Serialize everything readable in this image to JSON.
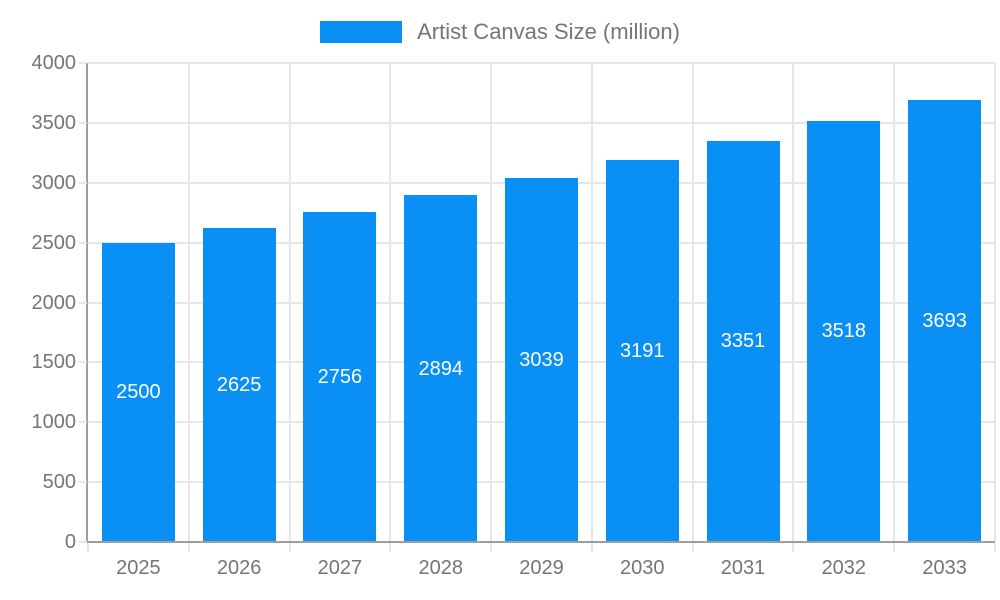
{
  "legend": {
    "label": "Artist Canvas Size (million)"
  },
  "colors": {
    "bar": "#0a8ff5",
    "text": "#757575",
    "grid": "#e6e6e6",
    "axis": "#9e9e9e",
    "bar_label": "#ffffff",
    "background": "#ffffff"
  },
  "chart_data": {
    "type": "bar",
    "categories": [
      "2025",
      "2026",
      "2027",
      "2028",
      "2029",
      "2030",
      "2031",
      "2032",
      "2033"
    ],
    "values": [
      2500,
      2625,
      2756,
      2894,
      3039,
      3191,
      3351,
      3518,
      3693
    ],
    "title": "",
    "legend_label": "Artist Canvas Size (million)",
    "xlabel": "",
    "ylabel": "",
    "ylim": [
      0,
      4000
    ],
    "ytick_step": 500,
    "yticks": [
      0,
      500,
      1000,
      1500,
      2000,
      2500,
      3000,
      3500,
      4000
    ],
    "grid": true,
    "legend_position": "top-center",
    "bar_value_labels": "inside-center"
  }
}
